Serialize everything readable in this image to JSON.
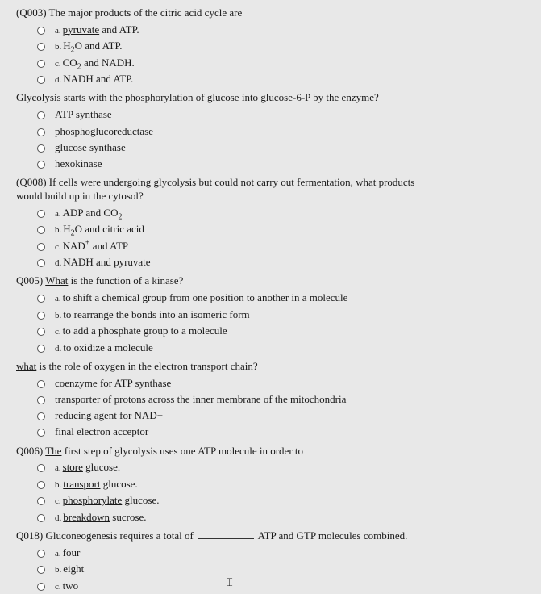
{
  "q1": {
    "prompt_prefix": "(Q003) The major products of the citric acid cycle are",
    "opts": {
      "a_label": "a.",
      "a_text_ul": "pyruvate",
      "a_text_rest": " and ATP.",
      "b_label": "b.",
      "b_text": "H",
      "b_sub": "2",
      "b_rest": "O and ATP.",
      "c_label": "c.",
      "c_text": "CO",
      "c_sub": "2",
      "c_rest": " and NADH.",
      "d_label": "d.",
      "d_text": "NADH and ATP."
    }
  },
  "q2": {
    "prompt": "Glycolysis starts with the phosphorylation of glucose into glucose-6-P by the enzyme?",
    "opts": {
      "a": "ATP synthase",
      "b": "phosphoglucoreductase",
      "c": "glucose synthase",
      "d": "hexokinase"
    }
  },
  "q3": {
    "prompt_line1": "(Q008) If cells were undergoing glycolysis but could not carry out fermentation, what products",
    "prompt_line2": "would build up in the cytosol?",
    "opts": {
      "a_label": "a.",
      "a_text": "ADP and CO",
      "a_sub": "2",
      "b_label": "b.",
      "b_text": "H",
      "b_sub": "2",
      "b_rest": "O and citric acid",
      "c_label": "c.",
      "c_text": "NAD",
      "c_sup": "+",
      "c_rest": " and ATP",
      "d_label": "d.",
      "d_text": "NADH and pyruvate"
    }
  },
  "q4": {
    "prompt_prefix": "Q005) ",
    "prompt_ul": "What",
    "prompt_rest": " is the function of a kinase?",
    "opts": {
      "a_label": "a.",
      "a_text": "to shift a chemical group from one position to another in a molecule",
      "b_label": "b.",
      "b_text": "to rearrange the bonds into an isomeric form",
      "c_label": "c.",
      "c_text": "to add a phosphate group to a molecule",
      "d_label": "d.",
      "d_text": "to oxidize a molecule"
    }
  },
  "q5": {
    "prompt_ul": "what",
    "prompt_rest": " is the role of oxygen in the electron transport chain?",
    "opts": {
      "a": "coenzyme for ATP synthase",
      "b": "transporter of protons across the inner membrane of the mitochondria",
      "c": "reducing agent for NAD+",
      "d": "final electron acceptor"
    }
  },
  "q6": {
    "prompt_prefix": "Q006) ",
    "prompt_ul": "The",
    "prompt_rest": " first step of glycolysis uses one ATP molecule in order to",
    "opts": {
      "a_label": "a.",
      "a_ul": "store",
      "a_rest": " glucose.",
      "b_label": "b.",
      "b_ul": "transport",
      "b_rest": " glucose.",
      "c_label": "c.",
      "c_ul": "phosphorylate",
      "c_rest": " glucose.",
      "d_label": "d.",
      "d_ul": "breakdown",
      "d_rest": " sucrose."
    }
  },
  "q7": {
    "prompt_prefix": "Q018) Gluconeogenesis requires a total of ",
    "prompt_rest": " ATP and GTP molecules combined.",
    "opts": {
      "a_label": "a.",
      "a_text": "four",
      "b_label": "b.",
      "b_text": "eight",
      "c_label": "c.",
      "c_text": "two"
    }
  },
  "cursor": "⌶"
}
